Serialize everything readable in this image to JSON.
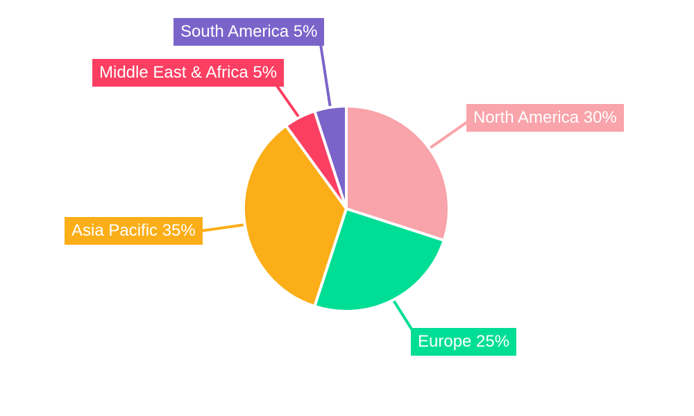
{
  "background_color": "#FFFFFF",
  "chart_data": {
    "type": "pie",
    "title": "",
    "categories": [
      "North America",
      "Europe",
      "Asia Pacific",
      "Middle East & Africa",
      "South America"
    ],
    "values": [
      30,
      25,
      35,
      5,
      5
    ],
    "unit": "%",
    "colors": [
      "#F9A3AA",
      "#00DE95",
      "#FBAE17",
      "#FB3F62",
      "#7A64CA"
    ],
    "label_texts": [
      "North America 30%",
      "Europe 25%",
      "Asia Pacific 35%",
      "Middle East & Africa 5%",
      "South America 5%"
    ],
    "label_text_color": "#FFFFFF",
    "slice_border_color": "#FFFFFF",
    "start_angle": "top",
    "direction": "clockwise",
    "legend": "none"
  }
}
